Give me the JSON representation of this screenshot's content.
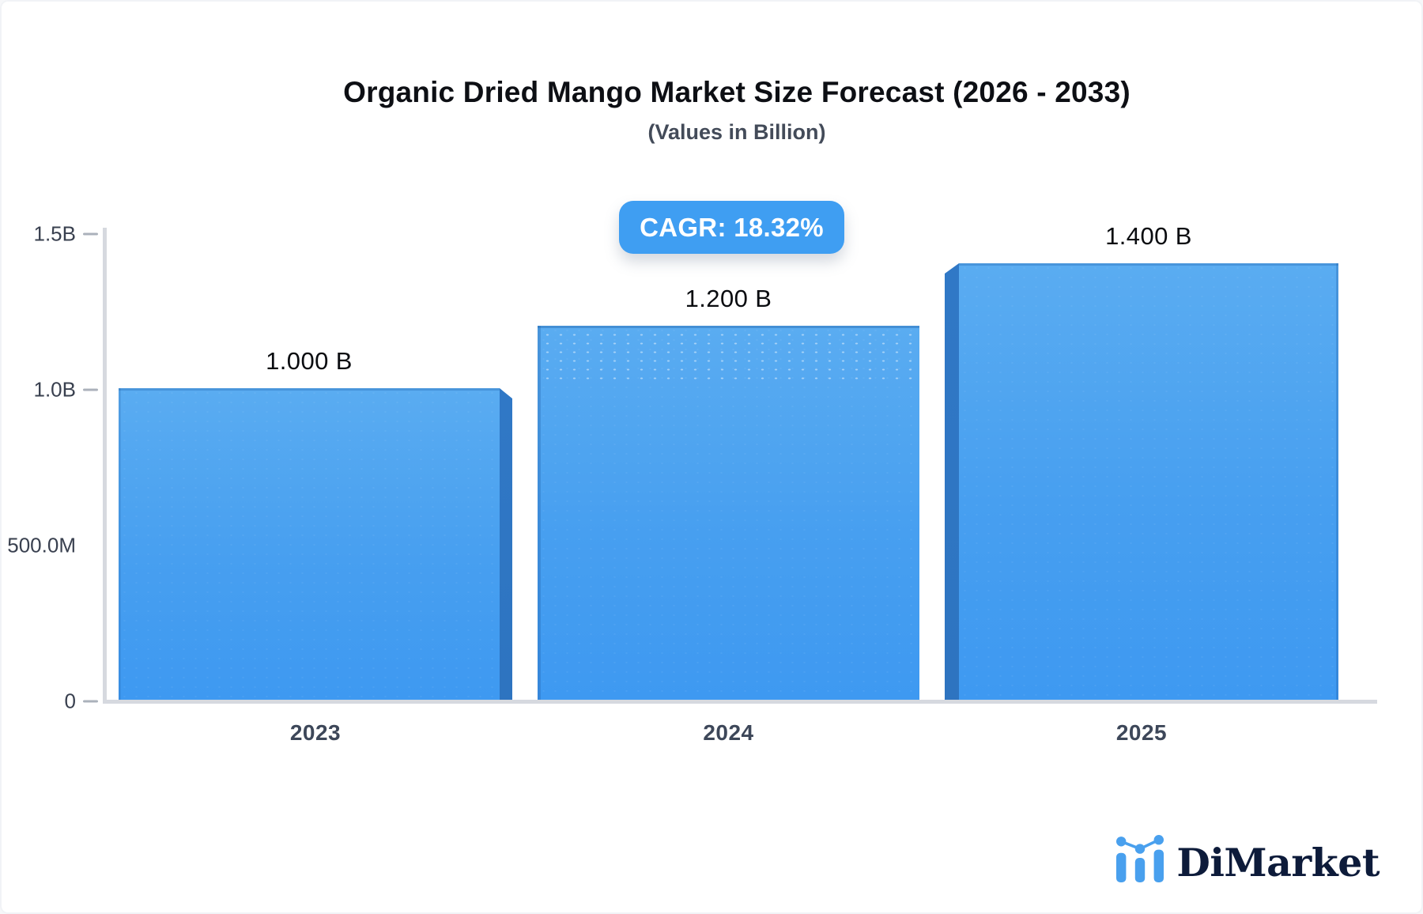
{
  "header": {
    "title": "Organic Dried Mango Market Size Forecast (2026 - 2033)",
    "subtitle": "(Values in Billion)",
    "cagr_badge": "CAGR: 18.32%"
  },
  "chart_data": {
    "type": "bar",
    "title": "Organic Dried Mango Market Size Forecast (2026 - 2033)",
    "subtitle": "(Values in Billion)",
    "cagr_percent": 18.32,
    "categories": [
      "2023",
      "2024",
      "2025"
    ],
    "values": [
      1.0,
      1.2,
      1.4
    ],
    "value_labels": [
      "1.000 B",
      "1.200 B",
      "1.400 B"
    ],
    "values_unit": "Billion",
    "ylim": [
      0,
      1.5
    ],
    "yticks": [
      {
        "label": "1.5B",
        "value": 1.5,
        "show_tick": true
      },
      {
        "label": "1.0B",
        "value": 1.0,
        "show_tick": true
      },
      {
        "label": "500.0M",
        "value": 0.5,
        "show_tick": false
      },
      {
        "label": "0",
        "value": 0,
        "show_tick": true
      }
    ],
    "grid": false,
    "legend": false,
    "colors": {
      "bar_face_top": "#5aacf1",
      "bar_face_bottom": "#3e99f1",
      "bar_side": "#2e74c0",
      "badge": "#3f9ef2",
      "axis_line": "#d6d9df"
    }
  },
  "branding": {
    "name": "DiMarket",
    "icon": "bar-chart-logo-icon",
    "color_blue": "#49a0ee",
    "color_navy": "#0d1b3a"
  }
}
